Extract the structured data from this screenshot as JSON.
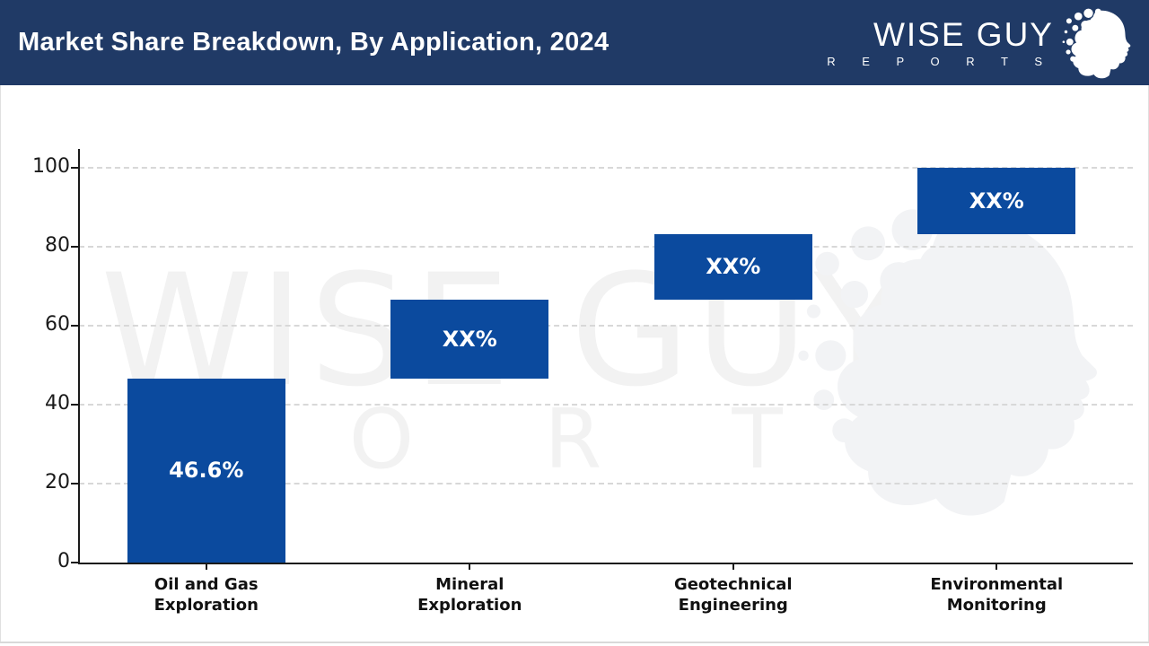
{
  "header": {
    "title": "Market Share Breakdown, By Application, 2024",
    "bg_color": "#203a66",
    "text_color": "#ffffff",
    "logo": {
      "wordmark": "WISE GUY",
      "subtext": "R E P O R T S"
    }
  },
  "watermark": {
    "line1": "WISE GUY",
    "line2": "P O R T S"
  },
  "chart_data": {
    "type": "bar",
    "variant": "waterfall-stacked-percentage",
    "title": "Market Share Breakdown, By Application, 2024",
    "categories": [
      "Oil and Gas\nExploration",
      "Mineral\nExploration",
      "Geotechnical\nEngineering",
      "Environmental\nMonitoring"
    ],
    "segments": [
      {
        "category": "Oil and Gas Exploration",
        "start": 0,
        "end": 46.6,
        "label": "46.6%"
      },
      {
        "category": "Mineral Exploration",
        "start": 46.6,
        "end": 66.6,
        "label": "XX%"
      },
      {
        "category": "Geotechnical Engineering",
        "start": 66.6,
        "end": 83.2,
        "label": "XX%"
      },
      {
        "category": "Environmental Monitoring",
        "start": 83.2,
        "end": 100,
        "label": "XX%"
      }
    ],
    "ylim": [
      0,
      100
    ],
    "yticks": [
      0,
      20,
      40,
      60,
      80,
      100
    ],
    "ytick_labels": [
      "0",
      "20",
      "40",
      "60",
      "80",
      "100"
    ],
    "xlabel": "",
    "ylabel": "",
    "grid": {
      "horizontal": true,
      "style": "dashed",
      "color": "#d8d8d8"
    },
    "bar_color": "#0b4a9e",
    "bar_label_color": "#ffffff",
    "axis_color": "#1a1a1a",
    "legend_position": "none"
  }
}
